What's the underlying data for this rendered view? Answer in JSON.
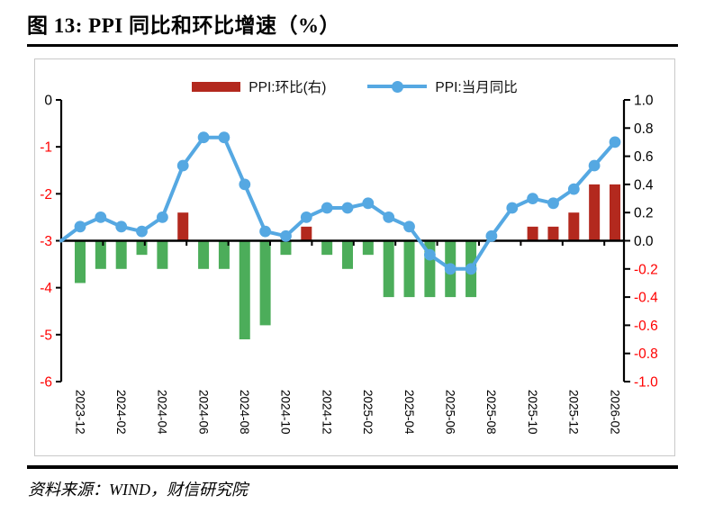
{
  "header": {
    "title": "图 13:  PPI 同比和环比增速（%）"
  },
  "legend": {
    "mom_label": "PPI:环比(右)",
    "yoy_label": "PPI:当月同比"
  },
  "footer": {
    "source": "资料来源：WIND，财信研究院"
  },
  "colors": {
    "bar_positive": "#b3291e",
    "bar_negative": "#4cad5a",
    "line": "#55a8e2",
    "axis": "#000000",
    "negative_tick_label": "#ff0000",
    "frame_border": "#c9c9c9"
  },
  "chart_data": {
    "type": "bar",
    "subtype": "combo-bar-line",
    "title": "图 13:  PPI 同比和环比增速（%）",
    "grid": false,
    "legend_position": "top-center",
    "x": [
      "2023-12",
      "2024-01",
      "2024-02",
      "2024-03",
      "2024-04",
      "2024-05",
      "2024-06",
      "2024-07",
      "2024-08",
      "2024-09",
      "2024-10",
      "2024-11",
      "2024-12",
      "2025-01",
      "2025-02",
      "2025-03",
      "2025-04",
      "2025-05",
      "2025-06",
      "2025-07",
      "2025-08",
      "2025-09",
      "2025-10",
      "2025-11",
      "2025-12",
      "2026-01",
      "2026-02"
    ],
    "x_tick_labels": [
      "2023-12",
      "2024-02",
      "2024-04",
      "2024-06",
      "2024-08",
      "2024-10",
      "2024-12",
      "2025-02",
      "2025-04",
      "2025-06",
      "2025-08",
      "2025-10",
      "2025-12",
      "2026-02"
    ],
    "series": [
      {
        "name": "PPI:环比(右)",
        "type": "bar",
        "axis": "right",
        "values": [
          -0.3,
          -0.2,
          -0.2,
          -0.1,
          -0.2,
          0.2,
          -0.2,
          -0.2,
          -0.7,
          -0.6,
          -0.1,
          0.1,
          -0.1,
          -0.2,
          -0.1,
          -0.4,
          -0.4,
          -0.4,
          -0.4,
          -0.4,
          0.0,
          0.0,
          0.1,
          0.1,
          0.2,
          0.4,
          0.4
        ]
      },
      {
        "name": "PPI:当月同比",
        "type": "line",
        "axis": "left",
        "lead_in_edge_value": -3.0,
        "values": [
          -2.7,
          -2.5,
          -2.7,
          -2.8,
          -2.5,
          -1.4,
          -0.8,
          -0.8,
          -1.8,
          -2.8,
          -2.9,
          -2.5,
          -2.3,
          -2.3,
          -2.2,
          -2.5,
          -2.7,
          -3.3,
          -3.6,
          -3.6,
          -2.9,
          -2.3,
          -2.1,
          -2.2,
          -1.9,
          -1.4,
          -0.9
        ]
      }
    ],
    "left_axis": {
      "range": [
        -6,
        0
      ],
      "tick_labels": [
        "0",
        "-1",
        "-2",
        "-3",
        "-4",
        "-5",
        "-6"
      ]
    },
    "right_axis": {
      "range": [
        -1,
        1
      ],
      "tick_labels": [
        "1.0",
        "0.8",
        "0.6",
        "0.4",
        "0.2",
        "0.0",
        "-0.2",
        "-0.4",
        "-0.6",
        "-0.8",
        "-1.0"
      ]
    }
  }
}
